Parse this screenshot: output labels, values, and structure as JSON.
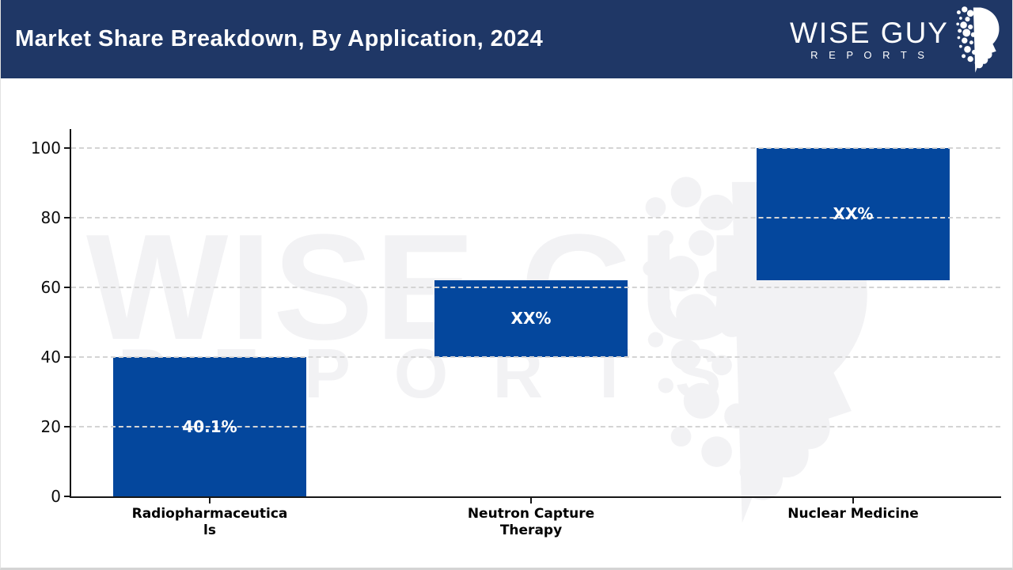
{
  "header": {
    "title": "Market Share Breakdown, By Application, 2024",
    "brand": {
      "name": "WISE GUY",
      "sub": "R E P O R T S"
    }
  },
  "watermark": {
    "line1": "WISE GUY",
    "line2": "R E P O R T S"
  },
  "colors": {
    "header_bg": "#1f3766",
    "bar": "#04479d",
    "grid": "#d4d4d4",
    "watermark": "#f2f2f4",
    "axis": "#161616",
    "bar_label_text": "#ffffff"
  },
  "chart_data": {
    "type": "bar",
    "subtype": "floating segment breakdown (waterfall-style market share)",
    "title": "Market Share Breakdown, By Application, 2024",
    "categories": [
      "Radiopharmaceuticals",
      "Neutron Capture Therapy",
      "Nuclear Medicine"
    ],
    "category_display": [
      [
        "Radiopharmaceutica",
        "ls"
      ],
      [
        "Neutron Capture",
        "Therapy"
      ],
      [
        "Nuclear Medicine"
      ]
    ],
    "segments": [
      {
        "label": "Radiopharmaceuticals",
        "start": 0,
        "end": 40.1,
        "value_label": "40.1%"
      },
      {
        "label": "Neutron Capture Therapy",
        "start": 40.1,
        "end": 62.1,
        "value_label": "XX%"
      },
      {
        "label": "Nuclear Medicine",
        "start": 62.1,
        "end": 100,
        "value_label": "XX%"
      }
    ],
    "ylim": [
      0,
      100
    ],
    "yticks": [
      0,
      20,
      40,
      60,
      80,
      100
    ],
    "xlabel": "",
    "ylabel": "",
    "grid": "horizontal dashed, drawn above bars",
    "legend": "none"
  }
}
